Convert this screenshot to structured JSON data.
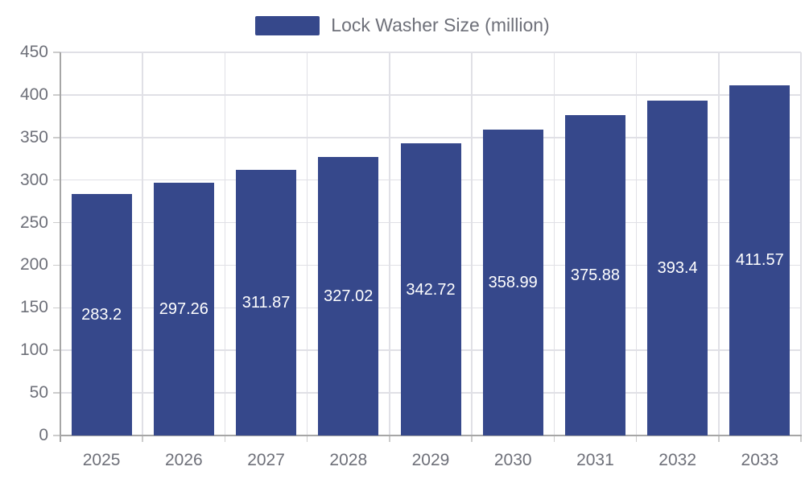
{
  "chart_data": {
    "type": "bar",
    "title": "",
    "legend": {
      "label": "Lock Washer Size (million)",
      "position": "top"
    },
    "categories": [
      "2025",
      "2026",
      "2027",
      "2028",
      "2029",
      "2030",
      "2031",
      "2032",
      "2033"
    ],
    "series": [
      {
        "name": "Lock Washer Size (million)",
        "values": [
          283.2,
          297.26,
          311.87,
          327.02,
          342.72,
          358.99,
          375.88,
          393.4,
          411.57
        ]
      }
    ],
    "xlabel": "",
    "ylabel": "",
    "ylim": [
      0,
      450
    ],
    "y_ticks": [
      0,
      50,
      100,
      150,
      200,
      250,
      300,
      350,
      400,
      450
    ],
    "grid": true,
    "value_labels_position": "inside-center",
    "colors": {
      "bar": "#36488B",
      "bar_label_text": "#ffffff",
      "grid_line": "#e0e0e6",
      "axis_line": "#a6a6a6",
      "tick_mark": "#cccccc",
      "axis_text": "#6e7079",
      "legend_text": "#6e7079",
      "background": "#ffffff"
    }
  }
}
